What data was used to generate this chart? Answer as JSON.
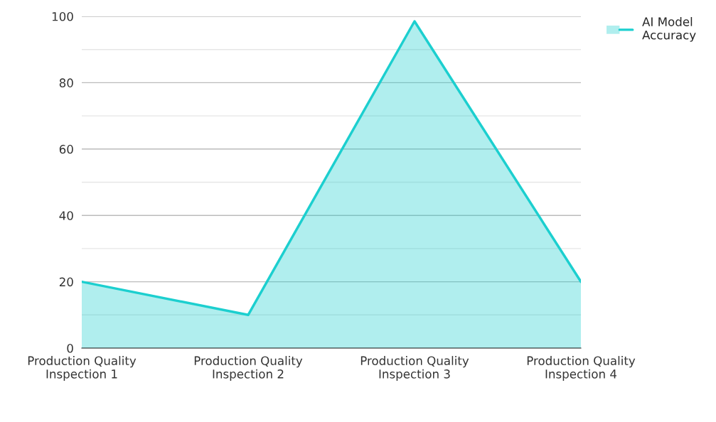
{
  "chart_data": {
    "type": "area",
    "categories": [
      "Production Quality Inspection 1",
      "Production Quality Inspection 2",
      "Production Quality Inspection 3",
      "Production Quality Inspection 4"
    ],
    "series": [
      {
        "name": "AI Model Accuracy",
        "color": "#1ccfcf",
        "values": [
          20,
          10,
          98.5,
          20
        ]
      }
    ],
    "ylim": [
      0,
      100
    ],
    "yticks": [
      0,
      {
        "value": 10,
        "label": null
      },
      20,
      {
        "value": 30,
        "label": null
      },
      40,
      {
        "value": 50,
        "label": null
      },
      60,
      {
        "value": 70,
        "label": null
      },
      80,
      {
        "value": 90,
        "label": null
      },
      100
    ],
    "grid": "y",
    "legend": "top right",
    "marker": "none",
    "line_style": "solid"
  }
}
